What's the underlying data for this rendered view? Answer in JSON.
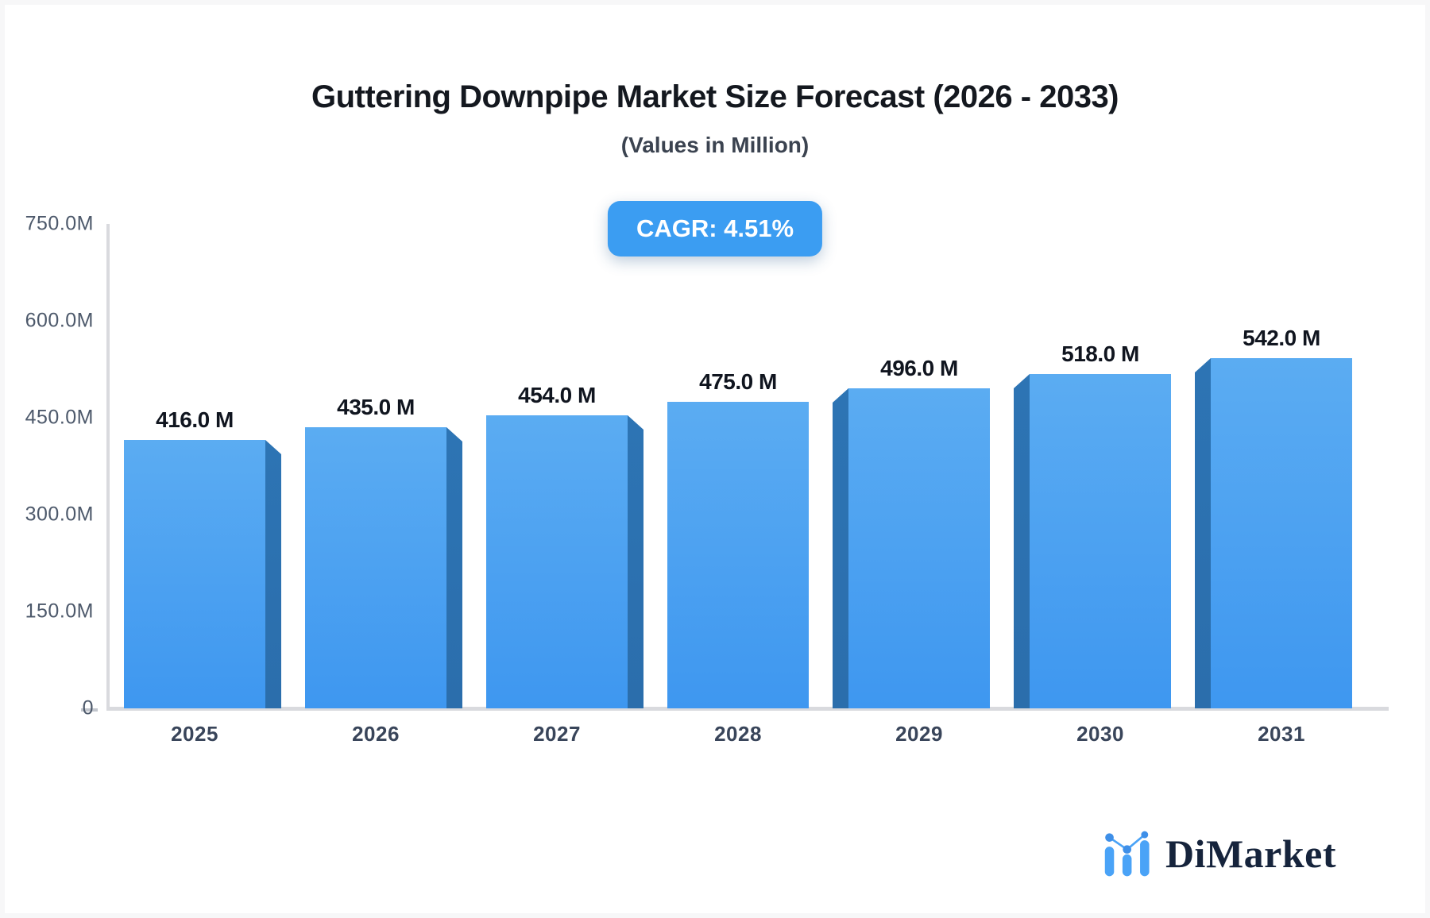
{
  "header": {
    "title": "Guttering Downpipe Market Size Forecast (2026 - 2033)",
    "subtitle": "(Values in Million)"
  },
  "badge": {
    "label": "CAGR: 4.51%"
  },
  "chart_data": {
    "type": "bar",
    "title": "Guttering Downpipe Market Size Forecast (2026 - 2033)",
    "subtitle": "(Values in Million)",
    "categories": [
      "2025",
      "2026",
      "2027",
      "2028",
      "2029",
      "2030",
      "2031"
    ],
    "values": [
      416.0,
      435.0,
      454.0,
      475.0,
      496.0,
      518.0,
      542.0
    ],
    "value_labels": [
      "416.0 M",
      "435.0 M",
      "454.0 M",
      "475.0 M",
      "496.0 M",
      "518.0 M",
      "542.0 M"
    ],
    "unit": "Million",
    "cagr": "4.51%",
    "y_axis": {
      "min": 0,
      "max": 750,
      "ticks": [
        {
          "label": "750.0M",
          "value": 750
        },
        {
          "label": "600.0M",
          "value": 600
        },
        {
          "label": "450.0M",
          "value": 450
        },
        {
          "label": "300.0M",
          "value": 300
        },
        {
          "label": "150.0M",
          "value": 150
        },
        {
          "label": "0",
          "value": 0
        }
      ]
    },
    "grid": false,
    "legend": false,
    "bar_style": "3d-perspective-center"
  },
  "logo": {
    "brand": "DiMarket",
    "icon": "bar-chart-with-trend-dots-icon"
  },
  "colors": {
    "bar_gradient_top": "#5BACF2",
    "bar_gradient_bottom": "#3E97F0",
    "bar_side": "#2D74B4",
    "badge_bg": "#3B9DF2",
    "badge_text": "#FFFFFF",
    "axis_line": "#D9DADE",
    "title": "#14181F",
    "subtitle": "#3B4350",
    "y_label": "#4D596B",
    "x_label": "#39455A",
    "value_label": "#10151F",
    "logo_text": "#16243C",
    "logo_icon": "#4AA3F7",
    "frame": "#F7F7F8"
  }
}
